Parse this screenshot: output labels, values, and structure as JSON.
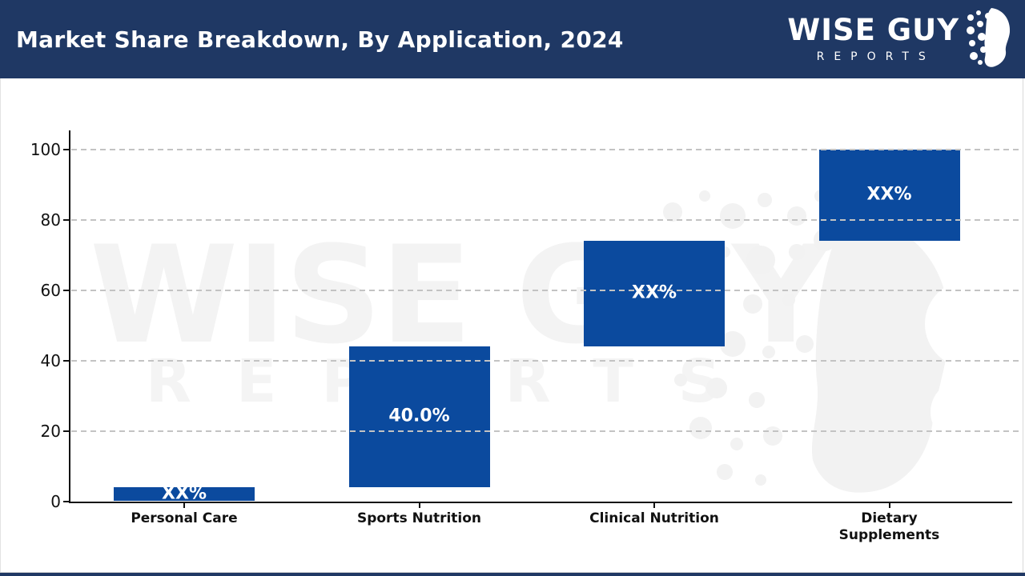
{
  "header": {
    "title": "Market Share Breakdown, By Application, 2024",
    "bg_color": "#1f3864",
    "brand": {
      "wordmark": "WISE GUY",
      "subtext": "REPORTS"
    }
  },
  "watermark": {
    "line1": "WISE GUY",
    "line2": "REPORTS"
  },
  "footer": {
    "bg_color": "#1f3864"
  },
  "chart_data": {
    "type": "bar",
    "subtype": "waterfall",
    "title": "Market Share Breakdown, By Application, 2024",
    "categories": [
      "Personal Care",
      "Sports Nutrition",
      "Clinical Nutrition",
      "Dietary Supplements"
    ],
    "category_lines": [
      [
        "Personal Care"
      ],
      [
        "Sports Nutrition"
      ],
      [
        "Clinical Nutrition"
      ],
      [
        "Dietary",
        "Supplements"
      ]
    ],
    "segments": [
      {
        "category": "Personal Care",
        "start": 0,
        "end": 4,
        "label": "XX%"
      },
      {
        "category": "Sports Nutrition",
        "start": 4,
        "end": 44,
        "label": "40.0%"
      },
      {
        "category": "Clinical Nutrition",
        "start": 44,
        "end": 74,
        "label": "XX%"
      },
      {
        "category": "Dietary Supplements",
        "start": 74,
        "end": 100,
        "label": "XX%"
      }
    ],
    "ylim": [
      0,
      100
    ],
    "yticks": [
      0,
      20,
      40,
      60,
      80,
      100
    ],
    "grid": "horizontal-dashed",
    "grid_color": "#c3c3c3",
    "bar_color": "#0b4a9e",
    "bar_label_color": "#ffffff",
    "axis_color": "#111111"
  }
}
